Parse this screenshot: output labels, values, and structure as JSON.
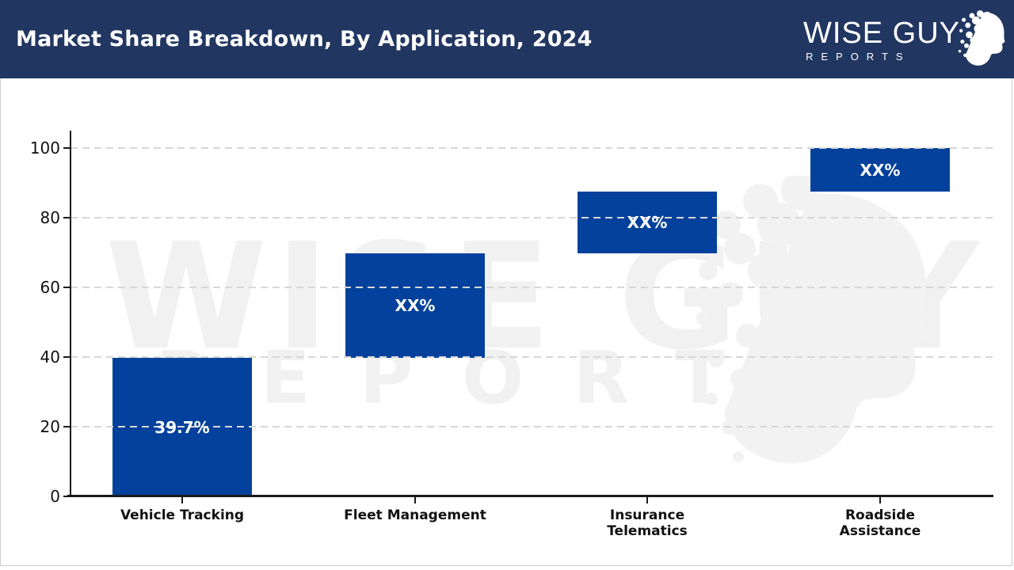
{
  "header": {
    "title": "Market Share Breakdown, By Application, 2024",
    "logo": {
      "line1": "WISE GUY",
      "line2": "REPORTS",
      "face_icon": "dotted-head-profile"
    }
  },
  "watermark": {
    "line1": "WISE GUY",
    "line2": "REPORTS",
    "face_icon": "dotted-head-profile"
  },
  "colors": {
    "header_bg": "#213660",
    "bar": "#04419C",
    "axis": "#1a1a1a",
    "grid": "#d7d7d7",
    "frame": "#cccccc",
    "watermark": "#f1f1f1",
    "bar_label": "#ffffff"
  },
  "chart_data": {
    "type": "bar",
    "variant": "waterfall",
    "title": "Market Share Breakdown, By Application, 2024",
    "categories": [
      "Vehicle Tracking",
      "Fleet Management",
      "Insurance Telematics",
      "Roadside Assistance"
    ],
    "categories_lines": [
      [
        "Vehicle Tracking"
      ],
      [
        "Fleet Management"
      ],
      [
        "Insurance",
        "Telematics"
      ],
      [
        "Roadside",
        "Assistance"
      ]
    ],
    "segments": [
      {
        "category": "Vehicle Tracking",
        "start": 0,
        "end": 39.7,
        "label": "39.7%"
      },
      {
        "category": "Fleet Management",
        "start": 39.7,
        "end": 69.7,
        "label": "XX%"
      },
      {
        "category": "Insurance Telematics",
        "start": 69.7,
        "end": 87.5,
        "label": "XX%"
      },
      {
        "category": "Roadside Assistance",
        "start": 87.5,
        "end": 100,
        "label": "XX%"
      }
    ],
    "ylim": [
      0,
      100
    ],
    "yticks": [
      0,
      20,
      40,
      60,
      80,
      100
    ],
    "xlabel": "",
    "ylabel": "",
    "grid": "horizontal dashed",
    "legend": "none",
    "bar_color": "#04419C"
  }
}
